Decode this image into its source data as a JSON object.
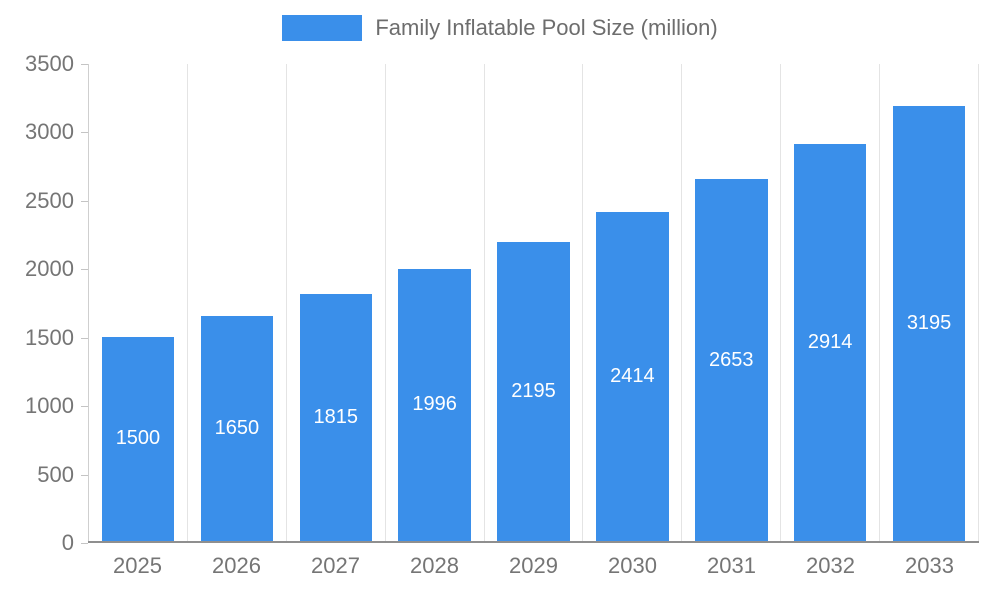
{
  "chart_data": {
    "type": "bar",
    "title": "Family Inflatable Pool Size (million)",
    "categories": [
      "2025",
      "2026",
      "2027",
      "2028",
      "2029",
      "2030",
      "2031",
      "2032",
      "2033"
    ],
    "values": [
      1500,
      1650,
      1815,
      1996,
      2195,
      2414,
      2653,
      2914,
      3195
    ],
    "xlabel": "",
    "ylabel": "",
    "ylim": [
      0,
      3500
    ],
    "ytick_step": 500,
    "grid": "vertical-only",
    "legend_position": "top-center",
    "value_labels": "inside-bar-centered",
    "colors": {
      "bar": "#3A8FEA",
      "bar_value_text": "#ffffff",
      "axis_text": "#757575",
      "title_text": "#6d6d6d",
      "gridline": "#e4e4e4",
      "baseline": "#8f8f8f"
    }
  }
}
